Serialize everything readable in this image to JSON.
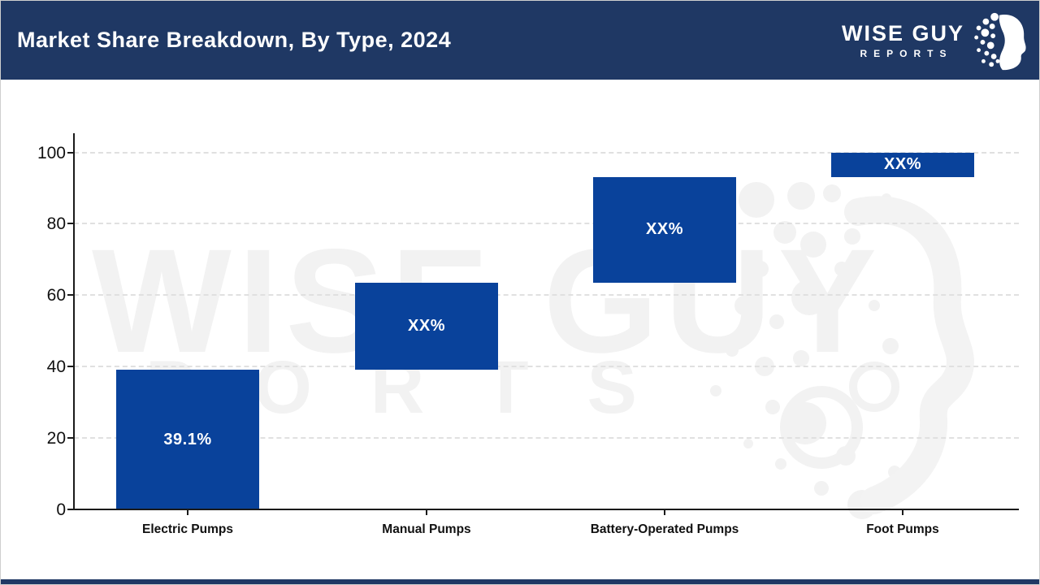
{
  "header": {
    "title": "Market Share Breakdown, By Type, 2024",
    "logo": {
      "line1": "WISE GUY",
      "line2": "REPORTS"
    }
  },
  "watermark": {
    "line1": "WISE GUY",
    "line2": "PORTS"
  },
  "chart_data": {
    "type": "bar",
    "subtype": "waterfall",
    "title": "Market Share Breakdown, By Type, 2024",
    "categories": [
      "Electric Pumps",
      "Manual Pumps",
      "Battery-Operated Pumps",
      "Foot Pumps"
    ],
    "bars": [
      {
        "category": "Electric Pumps",
        "label": "39.1%",
        "start": 0,
        "end": 39.1,
        "value": 39.1
      },
      {
        "category": "Manual Pumps",
        "label": "XX%",
        "start": 39.1,
        "end": 63.5,
        "value": 24.4
      },
      {
        "category": "Battery-Operated Pumps",
        "label": "XX%",
        "start": 63.5,
        "end": 93.1,
        "value": 29.6
      },
      {
        "category": "Foot Pumps",
        "label": "XX%",
        "start": 93.1,
        "end": 100,
        "value": 6.9
      }
    ],
    "y_ticks": [
      0,
      20,
      40,
      60,
      80,
      100
    ],
    "ylim": [
      0,
      105
    ],
    "xlabel": "",
    "ylabel": "",
    "grid": "horizontal-dashed",
    "legend": null,
    "bar_color": "#09429b"
  },
  "colors": {
    "header_bg": "#1f3864",
    "bar": "#09429b",
    "grid": "#e0e0e0",
    "watermark": "#f2f2f2",
    "axis": "#1a1a1a"
  }
}
